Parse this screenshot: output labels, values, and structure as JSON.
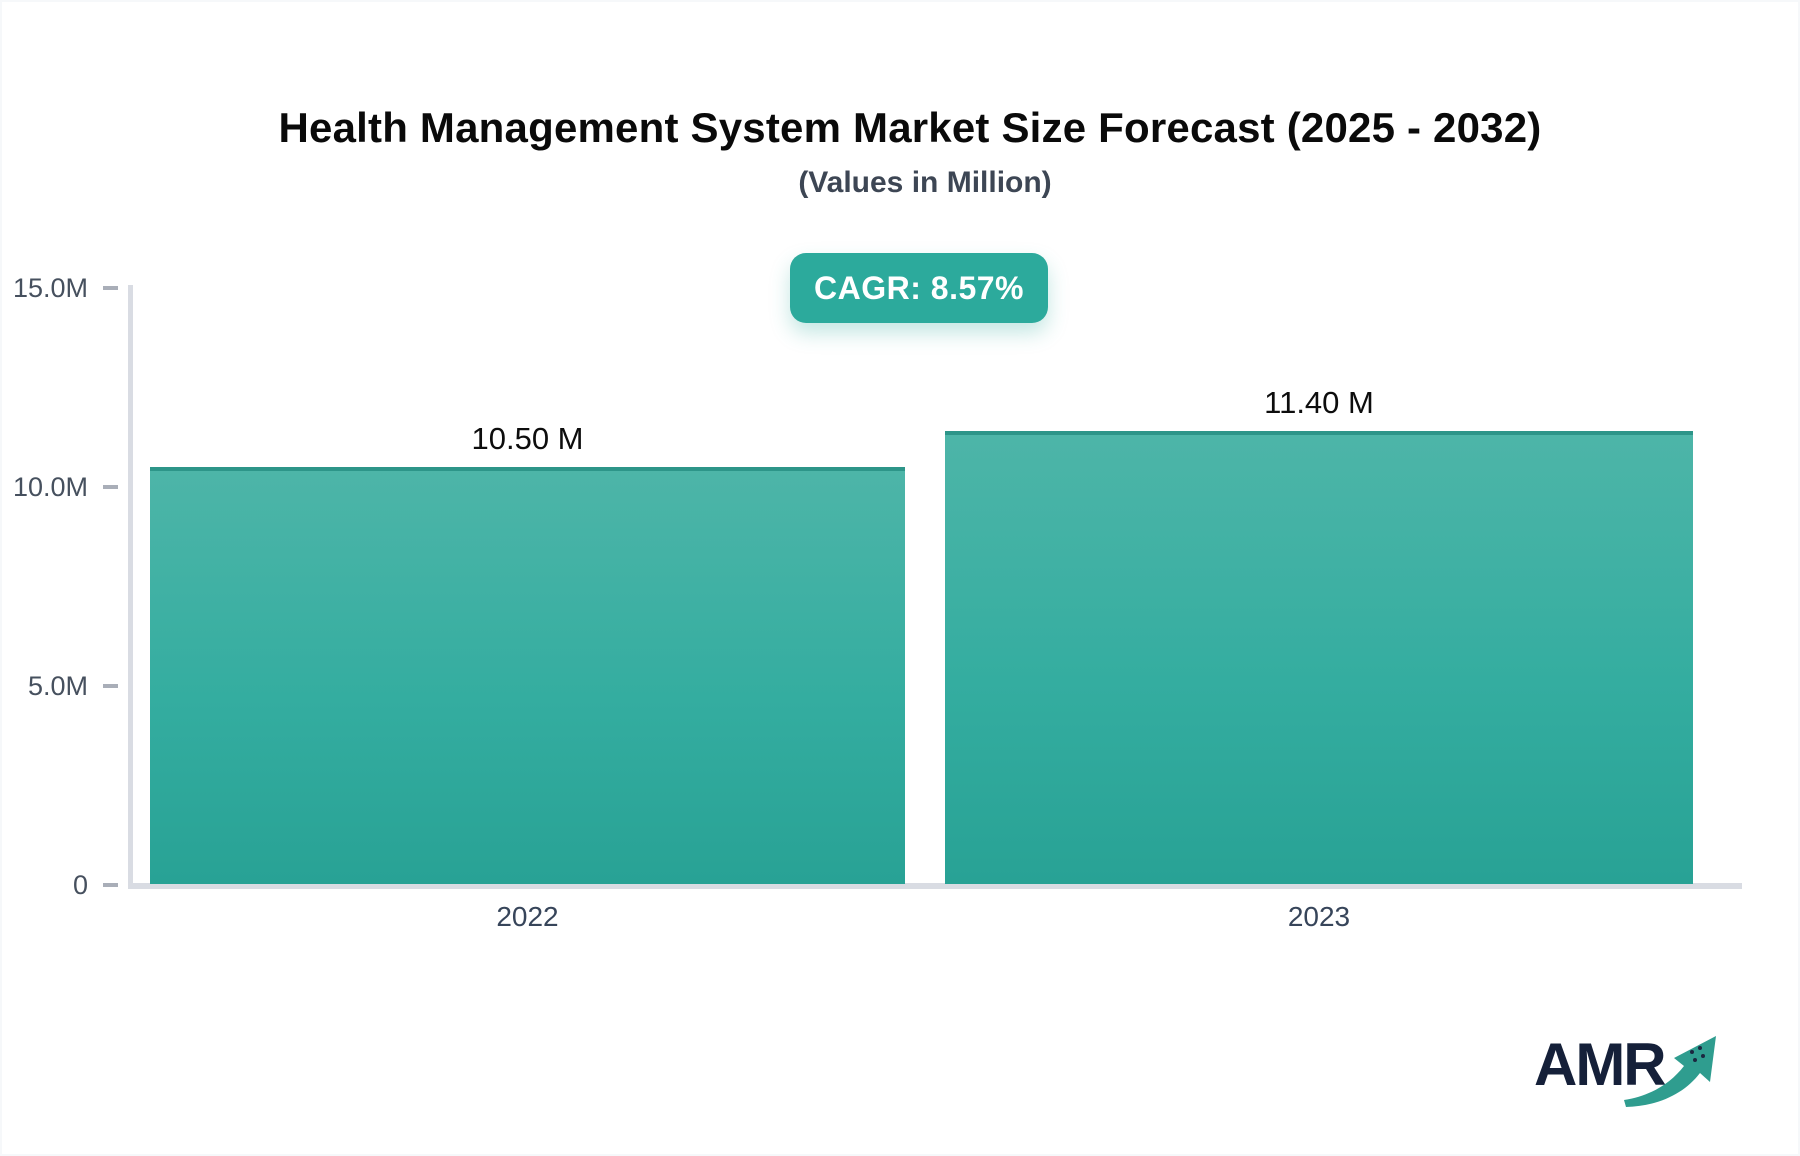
{
  "header": {
    "title": "Health Management System Market Size Forecast (2025 - 2032)",
    "subtitle": "(Values in Million)"
  },
  "badge": {
    "label": "CAGR: 8.57%"
  },
  "chart_data": {
    "type": "bar",
    "title": "Health Management System Market Size Forecast (2025 - 2032)",
    "subtitle": "(Values in Million)",
    "cagr_percent": 8.57,
    "unit": "Million",
    "categories": [
      "2022",
      "2023"
    ],
    "values": [
      10.5,
      11.4
    ],
    "bar_labels": [
      "10.50 M",
      "11.40 M"
    ],
    "ylim": [
      0,
      15
    ],
    "yticks": [
      {
        "value": 15,
        "label": "15.0M"
      },
      {
        "value": 10,
        "label": "10.0M"
      },
      {
        "value": 5,
        "label": "5.0M"
      },
      {
        "value": 0,
        "label": "0"
      }
    ],
    "grid": false,
    "legend": "none",
    "colors": {
      "bar_gradient_top": "#4db5a8",
      "bar_gradient_bottom": "#28a295",
      "bar_top_border": "#2d9589",
      "badge_bg": "#2caa9c",
      "axis_line": "#d9dce3"
    }
  },
  "logo": {
    "text": "AMR"
  }
}
